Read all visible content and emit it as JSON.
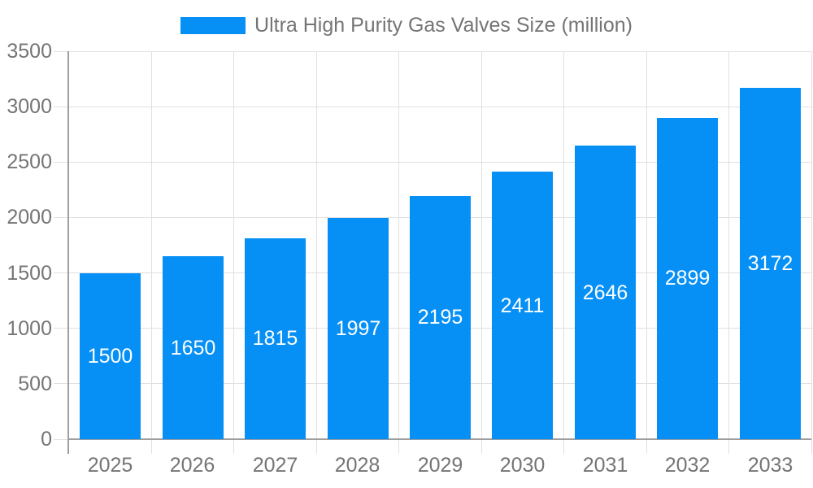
{
  "legend": {
    "label": "Ultra High Purity Gas Valves Size (million)"
  },
  "chart_data": {
    "type": "bar",
    "title": "Ultra High Purity Gas Valves Size (million)",
    "categories": [
      "2025",
      "2026",
      "2027",
      "2028",
      "2029",
      "2030",
      "2031",
      "2032",
      "2033"
    ],
    "values": [
      1500,
      1650,
      1815,
      1997,
      2195,
      2411,
      2646,
      2899,
      3172
    ],
    "series": [
      {
        "name": "Ultra High Purity Gas Valves Size (million)",
        "values": [
          1500,
          1650,
          1815,
          1997,
          2195,
          2411,
          2646,
          2899,
          3172
        ]
      }
    ],
    "xlabel": "",
    "ylabel": "",
    "ylim": [
      0,
      3500
    ],
    "yticks": [
      0,
      500,
      1000,
      1500,
      2000,
      2500,
      3000,
      3500
    ],
    "grid": true,
    "legend_position": "top",
    "bar_value_labels_visible": true,
    "colors": {
      "bar": "#0690F5",
      "axis_text": "#757575",
      "grid_line": "#e0e0e0",
      "axis_line": "#9e9e9e",
      "bar_label_text": "#ffffff"
    }
  }
}
